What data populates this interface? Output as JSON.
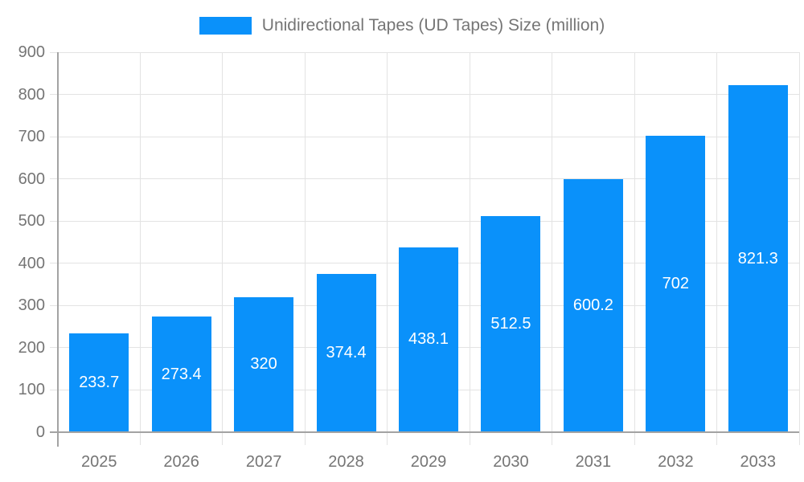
{
  "chart_data": {
    "type": "bar",
    "title": "",
    "legend": "Unidirectional Tapes (UD Tapes) Size (million)",
    "legend_position": "top-center",
    "categories": [
      "2025",
      "2026",
      "2027",
      "2028",
      "2029",
      "2030",
      "2031",
      "2032",
      "2033"
    ],
    "values": [
      233.7,
      273.4,
      320,
      374.4,
      438.1,
      512.5,
      600.2,
      702,
      821.3
    ],
    "value_labels": [
      "233.7",
      "273.4",
      "320",
      "374.4",
      "438.1",
      "512.5",
      "600.2",
      "702",
      "821.3"
    ],
    "xlabel": "",
    "ylabel": "",
    "ylim": [
      0,
      900
    ],
    "y_tick_step": 100,
    "y_tick_labels": [
      "0",
      "100",
      "200",
      "300",
      "400",
      "500",
      "600",
      "700",
      "800",
      "900"
    ],
    "grid": "horizontal gridlines plus vertical category-boundary gridlines",
    "bar_value_label_position": "centered inside bar"
  },
  "colors": {
    "bar": "#0a91fa",
    "grid": "#e3e3e3",
    "axis": "#a3a3a3",
    "tick_text": "#757575",
    "legend_text": "#757575",
    "bar_label_text": "#ffffff",
    "background": "#ffffff"
  }
}
